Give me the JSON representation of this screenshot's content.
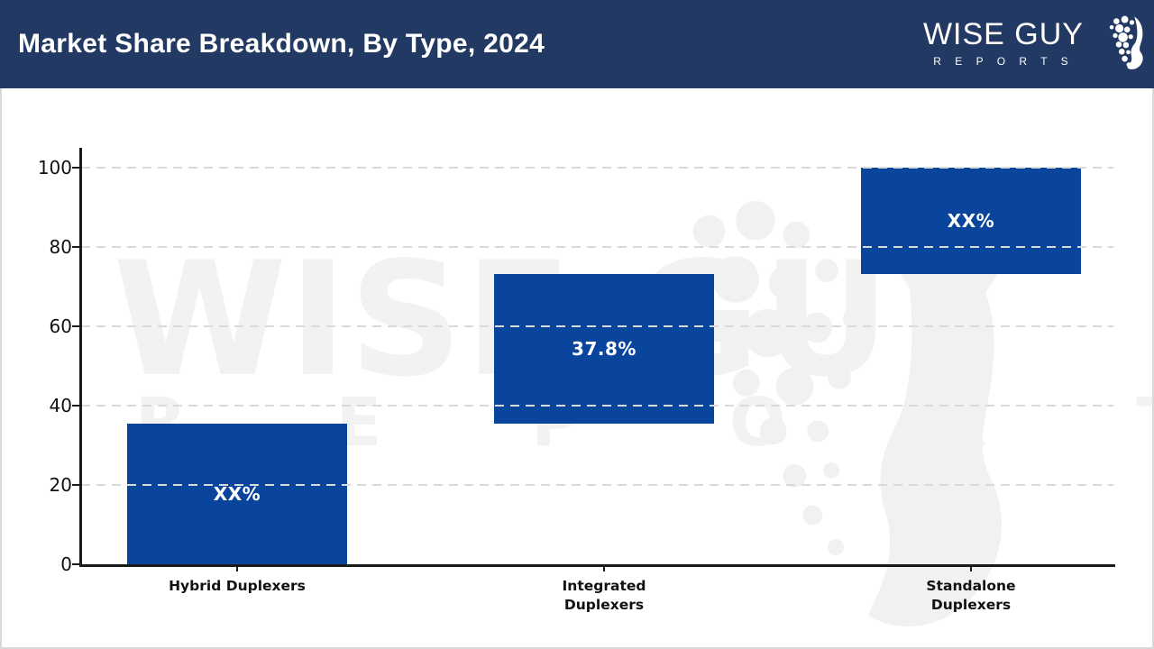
{
  "header": {
    "title": "Market Share Breakdown, By Type, 2024",
    "logo_line1": "WISE GUY",
    "logo_line2": "R E P O R T S"
  },
  "watermark": {
    "line1": "WISE GUY",
    "line2": "R E P O R T S"
  },
  "colors": {
    "header_bg": "#223a63",
    "bar": "#09459c",
    "bar_label": "#ffffff",
    "gridline": "#dadada",
    "axis": "#1a1a1a",
    "watermark": "#f2f2f2",
    "edge_border": "#d8d8d8"
  },
  "chart_data": {
    "type": "bar",
    "subtype": "floating segmented bars (cumulative market shares totalling 100%)",
    "title": "Market Share Breakdown, By Type, 2024",
    "categories": [
      "Hybrid Duplexers",
      "Integrated Duplexers",
      "Standalone Duplexers"
    ],
    "categories_lines": [
      [
        "Hybrid Duplexers"
      ],
      [
        "Integrated",
        "Duplexers"
      ],
      [
        "Standalone",
        "Duplexers"
      ]
    ],
    "series": [
      {
        "name": "Hybrid Duplexers",
        "start": 0,
        "end": 35.4,
        "height": 35.4,
        "value_label": "XX%"
      },
      {
        "name": "Integrated Duplexers",
        "start": 35.4,
        "end": 73.2,
        "height": 37.8,
        "value_label": "37.8%"
      },
      {
        "name": "Standalone Duplexers",
        "start": 73.2,
        "end": 100,
        "height": 26.8,
        "value_label": "XX%"
      }
    ],
    "yticks": [
      0,
      20,
      40,
      60,
      80,
      100
    ],
    "ylim": [
      0,
      105
    ],
    "xlabel": "",
    "ylabel": "",
    "grid": "horizontal dashed",
    "legend": "none"
  }
}
